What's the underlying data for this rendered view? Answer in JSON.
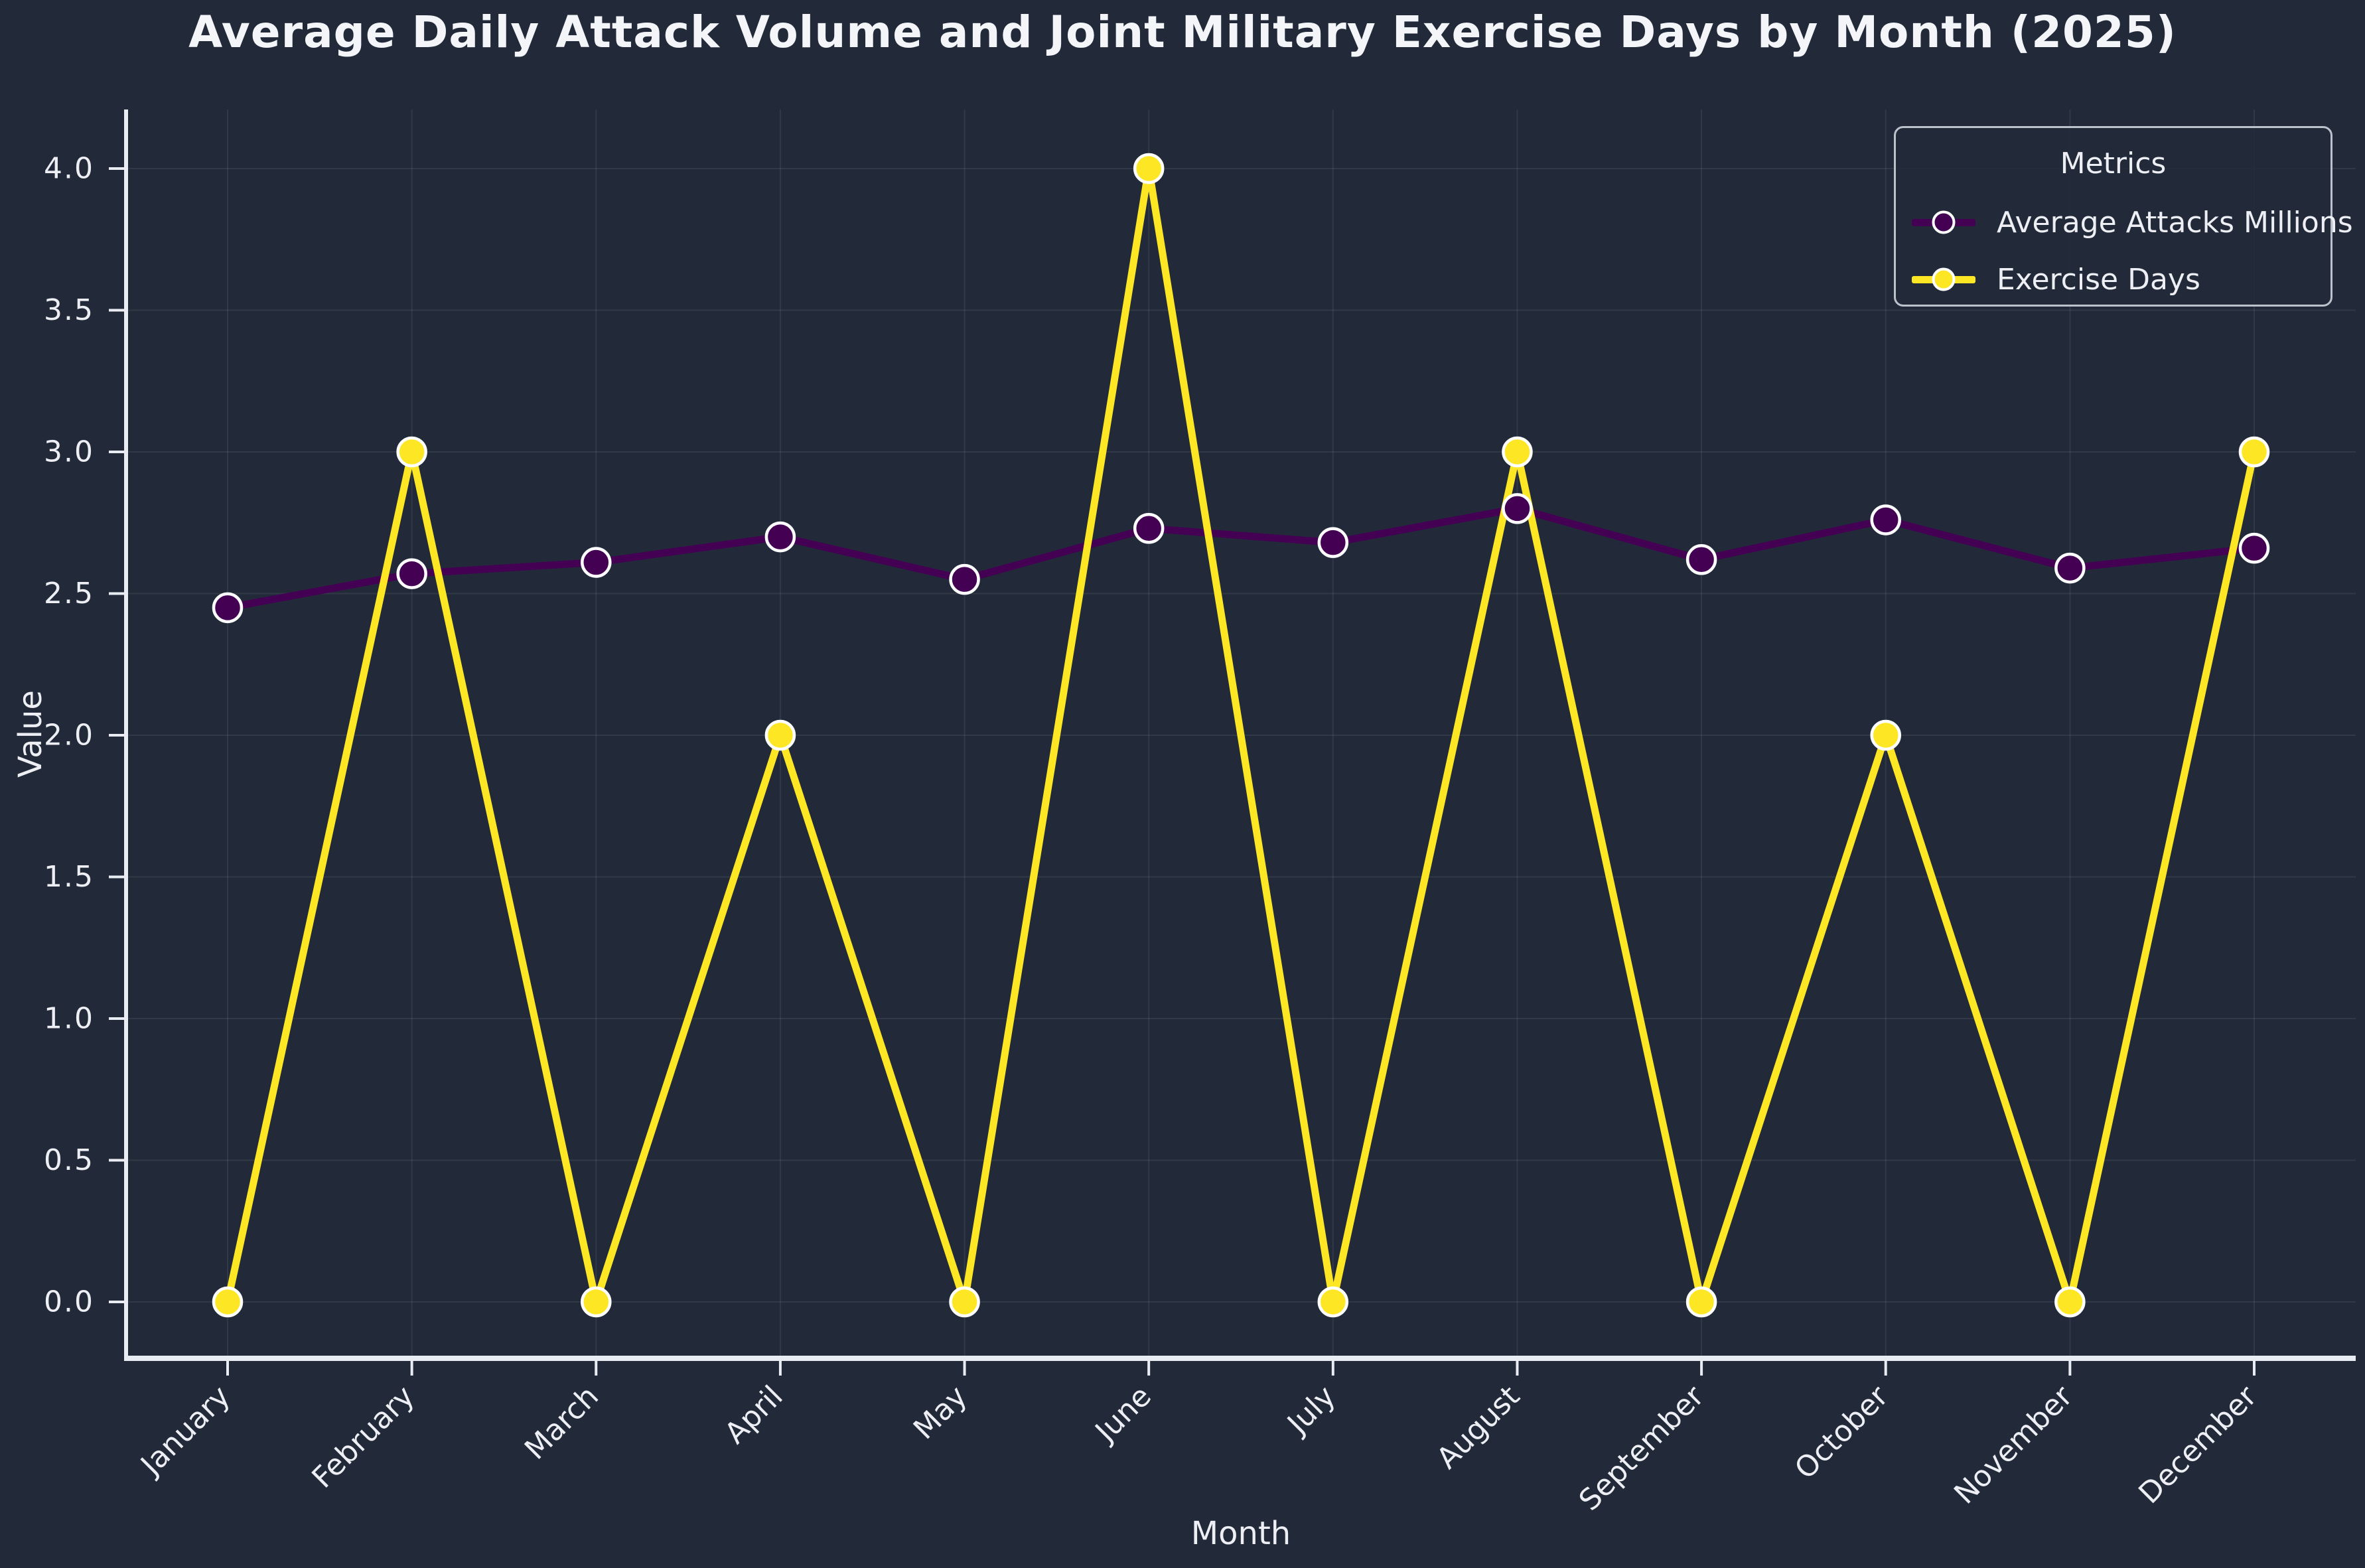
{
  "chart_data": {
    "type": "line",
    "title": "Average Daily Attack Volume and Joint Military Exercise Days by Month (2025)",
    "xlabel": "Month",
    "ylabel": "Value",
    "categories": [
      "January",
      "February",
      "March",
      "April",
      "May",
      "June",
      "July",
      "August",
      "September",
      "October",
      "November",
      "December"
    ],
    "series": [
      {
        "name": "Average Attacks Millions",
        "color": "#440154",
        "marker": "circle",
        "values": [
          2.45,
          2.57,
          2.61,
          2.7,
          2.55,
          2.73,
          2.68,
          2.8,
          2.62,
          2.76,
          2.59,
          2.66
        ]
      },
      {
        "name": "Exercise Days",
        "color": "#FDE725",
        "marker": "circle",
        "values": [
          0,
          3,
          0,
          2,
          0,
          4,
          0,
          3,
          0,
          2,
          0,
          3
        ]
      }
    ],
    "ylim": [
      0,
      4
    ],
    "yticks": [
      0.0,
      0.5,
      1.0,
      1.5,
      2.0,
      2.5,
      3.0,
      3.5,
      4.0
    ],
    "ytick_decimals": 1,
    "grid": true,
    "legend": {
      "title": "Metrics",
      "position": "upper right"
    }
  },
  "colors": {
    "background": "#222A3A",
    "grid_line": "rgba(255,255,255,0.07)",
    "spine": "#E9ECF2",
    "tick": "#E9ECF2",
    "text": "#EDEFF4",
    "marker_edge": "#FFFFFF"
  }
}
